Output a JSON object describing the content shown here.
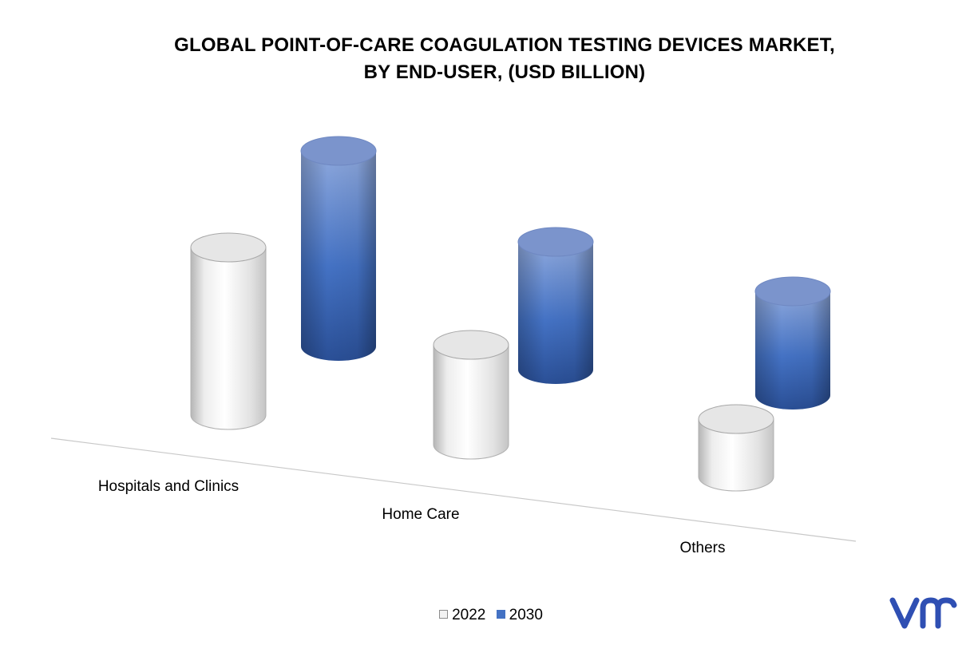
{
  "chart_data": {
    "type": "bar",
    "style": "3d-cylinder",
    "title": "GLOBAL POINT-OF-CARE COAGULATION TESTING DEVICES MARKET,\nBY END-USER, (USD BILLION)",
    "title_lines": [
      "GLOBAL POINT-OF-CARE COAGULATION TESTING DEVICES MARKET,",
      "BY END-USER, (USD BILLION)"
    ],
    "categories": [
      "Hospitals and Clinics",
      "Home Care",
      "Others"
    ],
    "series": [
      {
        "name": "2022",
        "values": [
          2.1,
          1.25,
          0.72
        ],
        "color": "#f2f2f2"
      },
      {
        "name": "2030",
        "values": [
          2.45,
          1.6,
          1.3
        ],
        "color": "#4472c4"
      }
    ],
    "ylim": [
      0,
      3
    ],
    "grid": false,
    "legend_position": "bottom",
    "brand_mark": "vmr",
    "brand_color": "#2f4fb3"
  }
}
